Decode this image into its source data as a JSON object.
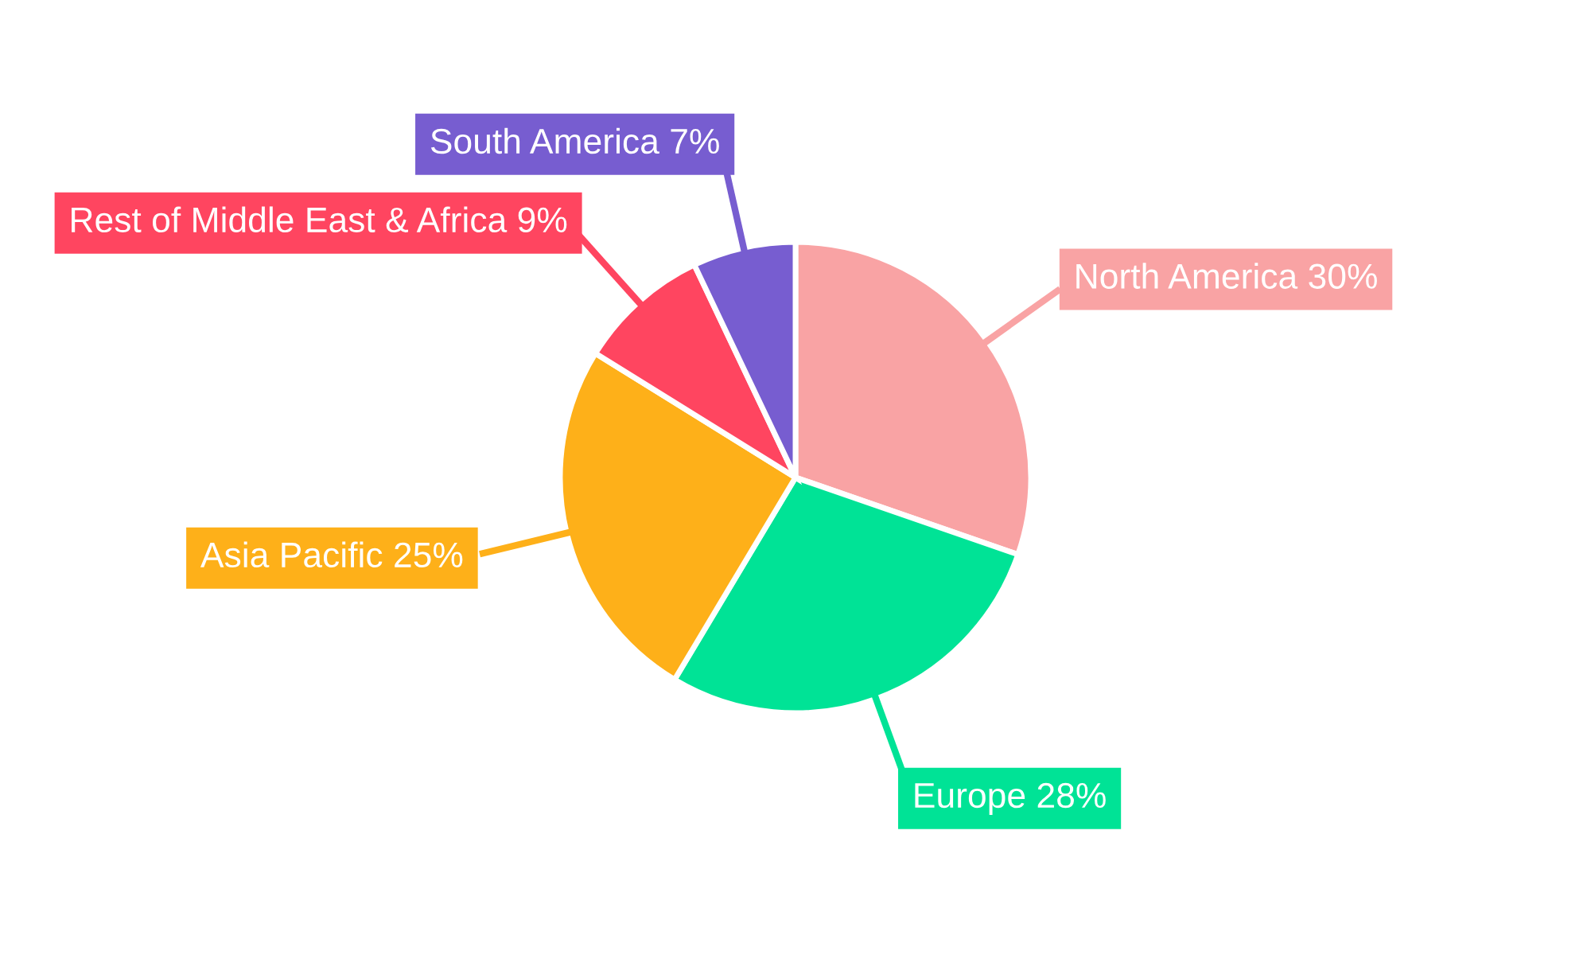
{
  "chart_data": {
    "type": "pie",
    "categories": [
      "North America",
      "Europe",
      "Asia Pacific",
      "Rest of Middle East & Africa",
      "South America"
    ],
    "values": [
      30,
      28,
      25,
      9,
      7
    ],
    "value_labels": [
      "30%",
      "28%",
      "25%",
      "9%",
      "7%"
    ],
    "colors": [
      "#f9a3a4",
      "#00e396",
      "#feb019",
      "#ff4560",
      "#775dd0"
    ],
    "legend": false
  }
}
